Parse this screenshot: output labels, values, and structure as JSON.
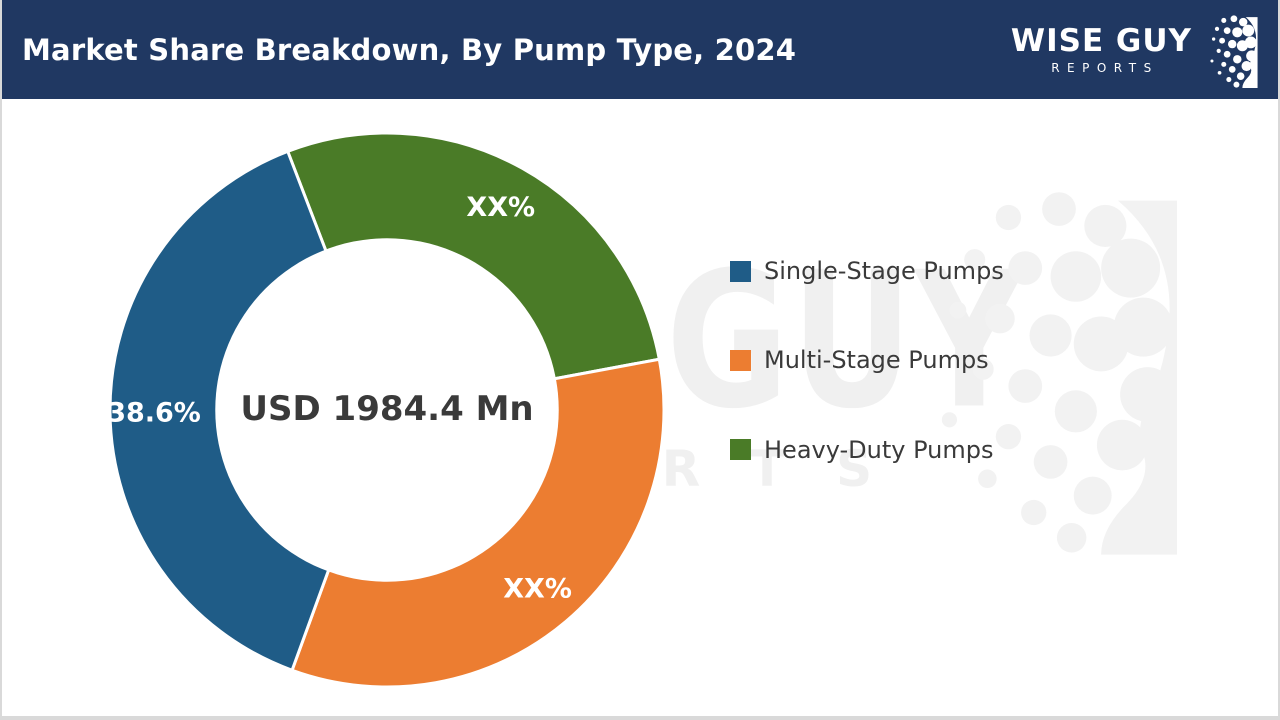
{
  "header": {
    "title": "Market Share Breakdown, By Pump Type, 2024",
    "logo": {
      "name": "WISE GUY",
      "sub": "REPORTS"
    }
  },
  "watermark": {
    "word": "WISE GUY",
    "sub": "REPORTS"
  },
  "chart_data": {
    "type": "pie",
    "subtype": "donut",
    "title": "Market Share Breakdown, By Pump Type, 2024",
    "center_label": "USD 1984.4 Mn",
    "donut_hole_ratio": 0.62,
    "start_angle_deg": 111,
    "direction": "clockwise",
    "legend_position": "right",
    "segments": [
      {
        "name": "Single-Stage Pumps",
        "value_pct": 38.6,
        "label": "38.6%",
        "color": "#1F5C87"
      },
      {
        "name": "Multi-Stage Pumps",
        "value_pct": 33.5,
        "label": "XX%",
        "color": "#EC7D31"
      },
      {
        "name": "Heavy-Duty Pumps",
        "value_pct": 27.9,
        "label": "XX%",
        "color": "#4A7B27"
      }
    ]
  },
  "colors": {
    "header_bg": "#203862",
    "segment_gap": "#FFFFFF",
    "text_dark": "#3A3A3A",
    "watermark": "#F0F0F0",
    "border": "#D9D9D9"
  }
}
